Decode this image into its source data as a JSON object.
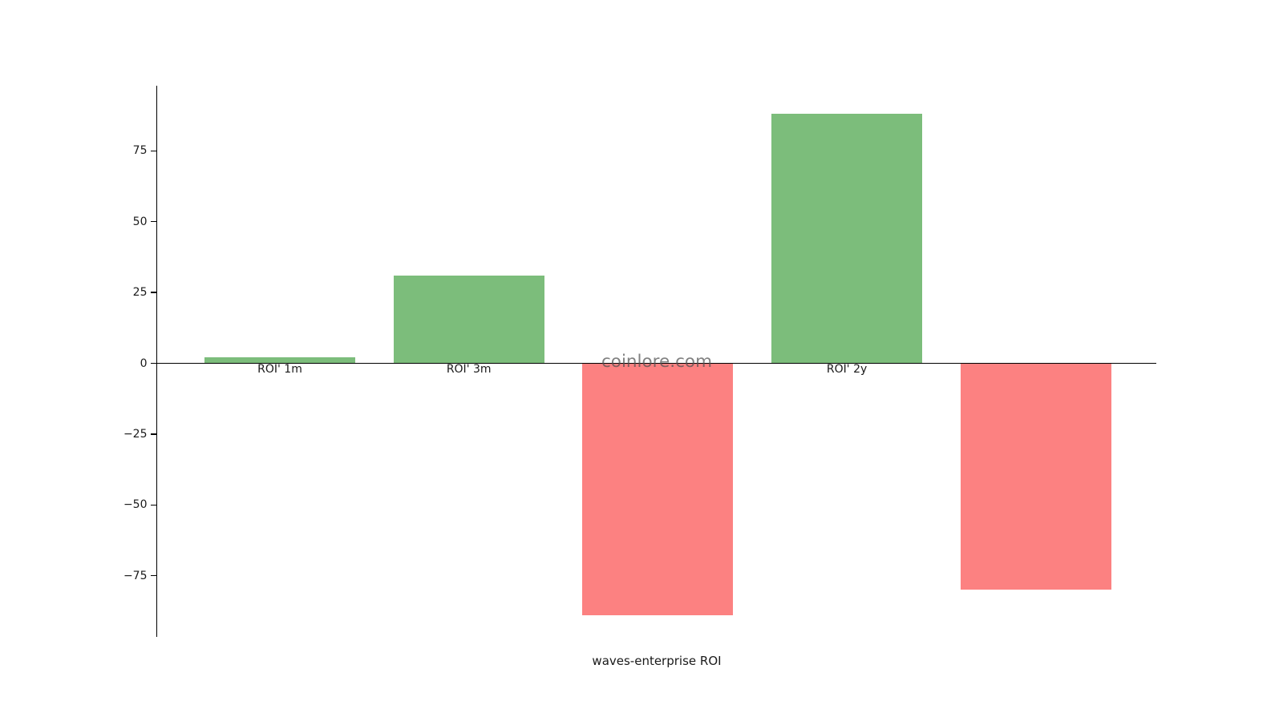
{
  "watermark": "coinlore.com",
  "title": "waves-enterprise ROI",
  "colors": {
    "positive_bar": "#7cbd7b",
    "negative_bar": "#fc8181",
    "axis": "#000000",
    "text": "#1a1a1a",
    "watermark": "#505050"
  },
  "chart_data": {
    "type": "bar",
    "title": "waves-enterprise ROI",
    "xlabel": "",
    "ylabel": "",
    "categories": [
      "ROI' 1m",
      "ROI' 3m",
      "",
      "ROI' 2y",
      ""
    ],
    "values": [
      2,
      31,
      -89,
      88,
      -80
    ],
    "bar_signs": [
      "positive",
      "positive",
      "negative",
      "positive",
      "negative"
    ],
    "yticks": [
      75,
      50,
      25,
      0,
      -25,
      -50,
      -75
    ],
    "ytick_labels": [
      "75",
      "50",
      "25",
      "0",
      "−25",
      "−50",
      "−75"
    ],
    "ylim": [
      -97,
      98
    ],
    "grid": false,
    "legend": null,
    "note_hidden_labels": "x labels of the two negative (red) bars are covered by the bars and not visible",
    "watermark_text": "coinlore.com"
  }
}
